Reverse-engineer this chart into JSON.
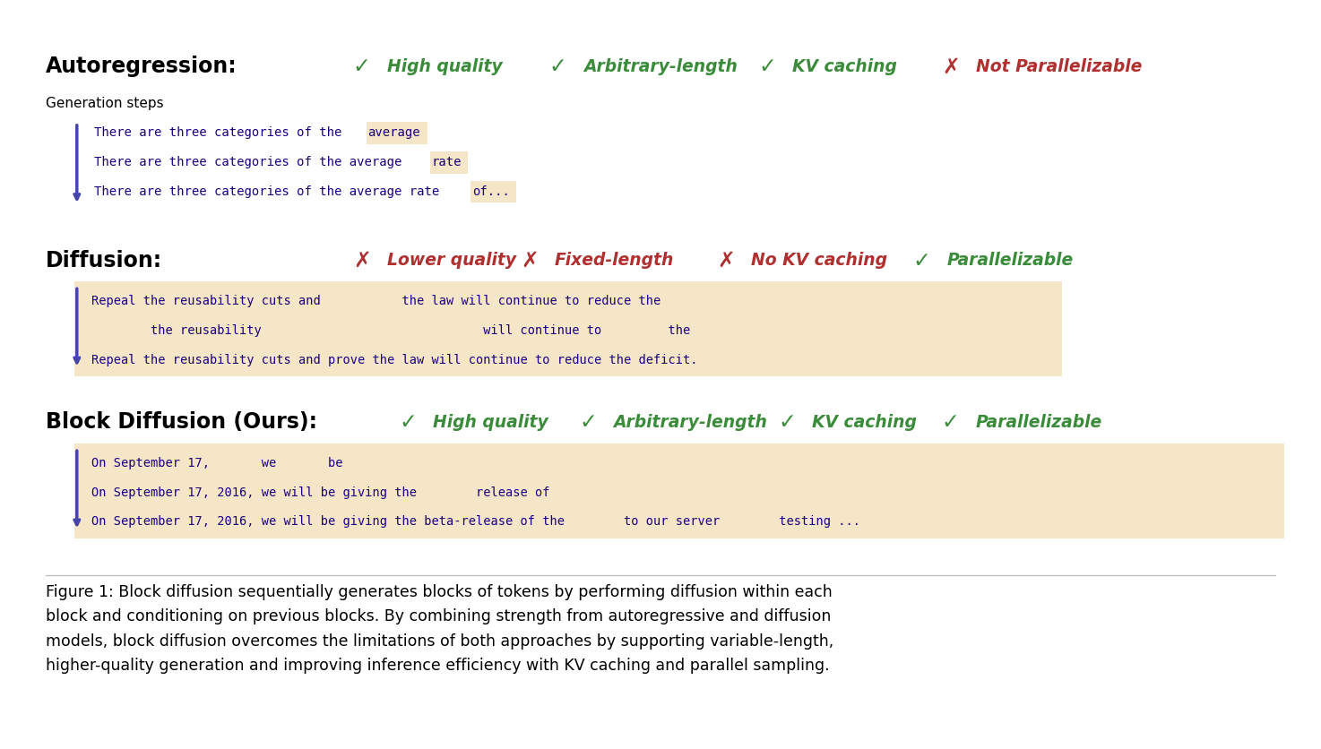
{
  "bg_color": "#ffffff",
  "text_color": "#1a0080",
  "highlight_bg": "#f5e6c8",
  "arrow_color": "#4444aa",
  "green_check_color": "#3a8c3a",
  "red_x_color": "#b03030",
  "section_label_color": "#000000",
  "autoregression_label": "Autoregression:",
  "diffusion_label": "Diffusion:",
  "block_diffusion_label": "Block Diffusion (Ours):",
  "gen_steps_label": "Generation steps",
  "ar_badges": [
    {
      "symbol": "✓",
      "text": "High quality",
      "positive": true
    },
    {
      "symbol": "✓",
      "text": "Arbitrary-length",
      "positive": true
    },
    {
      "symbol": "✓",
      "text": "KV caching",
      "positive": true
    },
    {
      "symbol": "✗",
      "text": "Not Parallelizable",
      "positive": false
    }
  ],
  "diff_badges": [
    {
      "symbol": "✗",
      "text": "Lower quality",
      "positive": false
    },
    {
      "symbol": "✗",
      "text": "Fixed-length",
      "positive": false
    },
    {
      "symbol": "✗",
      "text": "No KV caching",
      "positive": false
    },
    {
      "symbol": "✓",
      "text": "Parallelizable",
      "positive": true
    }
  ],
  "bd_badges": [
    {
      "symbol": "✓",
      "text": "High quality",
      "positive": true
    },
    {
      "symbol": "✓",
      "text": "Arbitrary-length",
      "positive": true
    },
    {
      "symbol": "✓",
      "text": "KV caching",
      "positive": true
    },
    {
      "symbol": "✓",
      "text": "Parallelizable",
      "positive": true
    }
  ],
  "ar_line_texts": [
    "There are three categories of the ",
    "There are three categories of the average ",
    "There are three categories of the average rate "
  ],
  "ar_line_highlights": [
    "average",
    "rate",
    "of..."
  ],
  "diff_line_texts": [
    "Repeal the reusability cuts and           the law will continue to reduce the",
    "        the reusability                              will continue to         the",
    "Repeal the reusability cuts and prove the law will continue to reduce the deficit."
  ],
  "bd_line_texts": [
    "On September 17,       we       be",
    "On September 17, 2016, we will be giving the        release of",
    "On September 17, 2016, we will be giving the beta-release of the        to our server        testing ..."
  ],
  "caption": "Figure 1: Block diffusion sequentially generates blocks of tokens by performing diffusion within each\nblock and conditioning on previous blocks. By combining strength from autoregressive and diffusion\nmodels, block diffusion overcomes the limitations of both approaches by supporting variable-length,\nhigher-quality generation and improving inference efficiency with KV caching and parallel sampling.",
  "fig_width": 14.74,
  "fig_height": 8.36
}
